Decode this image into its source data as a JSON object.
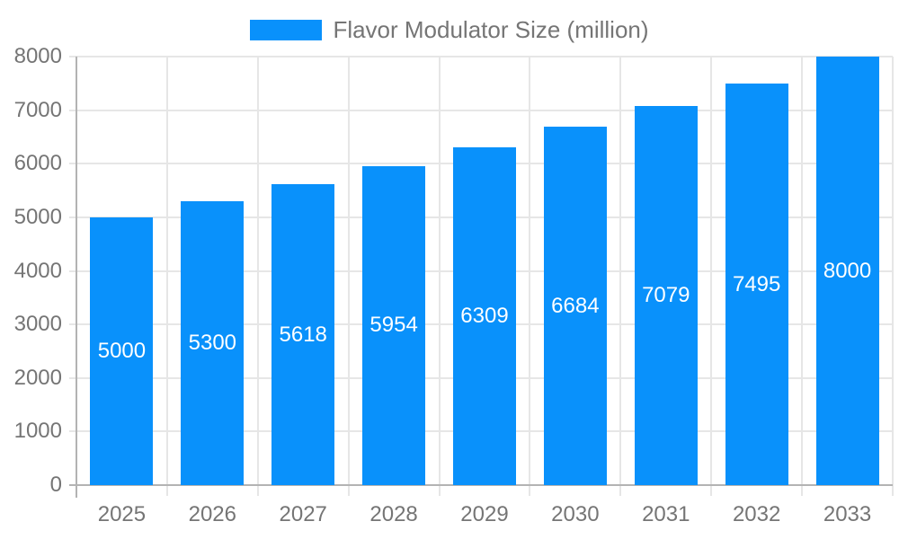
{
  "legend": {
    "label": "Flavor Modulator Size (million)",
    "swatch_color": "#0991fb"
  },
  "chart_data": {
    "type": "bar",
    "title": "Flavor Modulator Size (million)",
    "series_name": "Flavor Modulator Size (million)",
    "categories": [
      "2025",
      "2026",
      "2027",
      "2028",
      "2029",
      "2030",
      "2031",
      "2032",
      "2033"
    ],
    "values": [
      5000,
      5300,
      5618,
      5954,
      6309,
      6684,
      7079,
      7495,
      8000
    ],
    "value_labels": [
      "5000",
      "5300",
      "5618",
      "5954",
      "6309",
      "6684",
      "7079",
      "7495",
      "8000"
    ],
    "xlabel": "",
    "ylabel": "",
    "ylim": [
      0,
      8000
    ],
    "ytick_interval": 1000,
    "yticks": [
      0,
      1000,
      2000,
      3000,
      4000,
      5000,
      6000,
      7000,
      8000
    ],
    "grid": true,
    "legend_position": "top",
    "colors": {
      "bar": "#0991fb",
      "value_label": "#ffffff",
      "axis_text": "#757575",
      "gridline": "#e6e6e6",
      "axis_line": "#b3b3b3"
    }
  }
}
